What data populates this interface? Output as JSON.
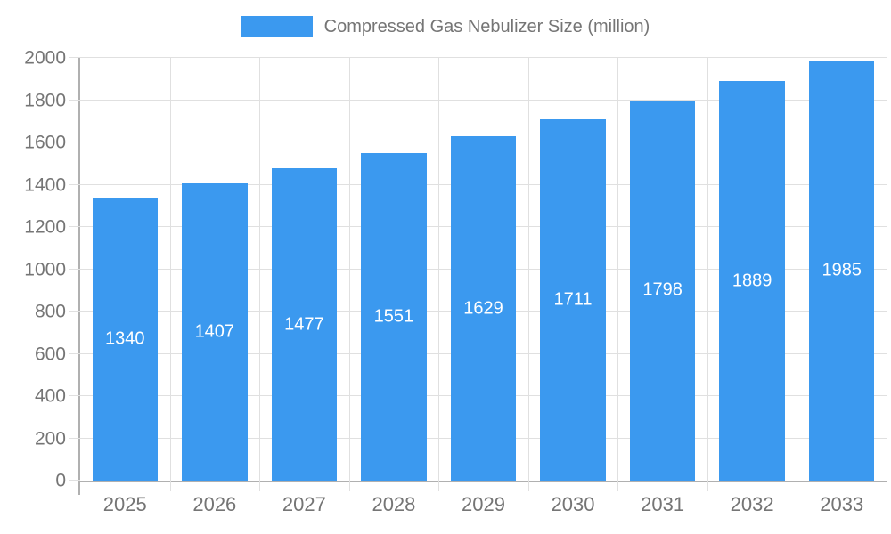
{
  "legend": {
    "label": "Compressed Gas Nebulizer Size (million)"
  },
  "colors": {
    "bar": "#3B99EF",
    "grid": "#E0E0E0",
    "axis": "#B0B0B0",
    "text": "#757575",
    "value_label": "#FFFFFF"
  },
  "chart_data": {
    "type": "bar",
    "categories": [
      "2025",
      "2026",
      "2027",
      "2028",
      "2029",
      "2030",
      "2031",
      "2032",
      "2033"
    ],
    "values": [
      1340,
      1407,
      1477,
      1551,
      1629,
      1711,
      1798,
      1889,
      1985
    ],
    "title": "Compressed Gas Nebulizer Size (million)",
    "xlabel": "",
    "ylabel": "",
    "ylim": [
      0,
      2000
    ],
    "ytick_step": 200,
    "grid": true,
    "legend_position": "top-center",
    "value_labels": "inside-center"
  }
}
